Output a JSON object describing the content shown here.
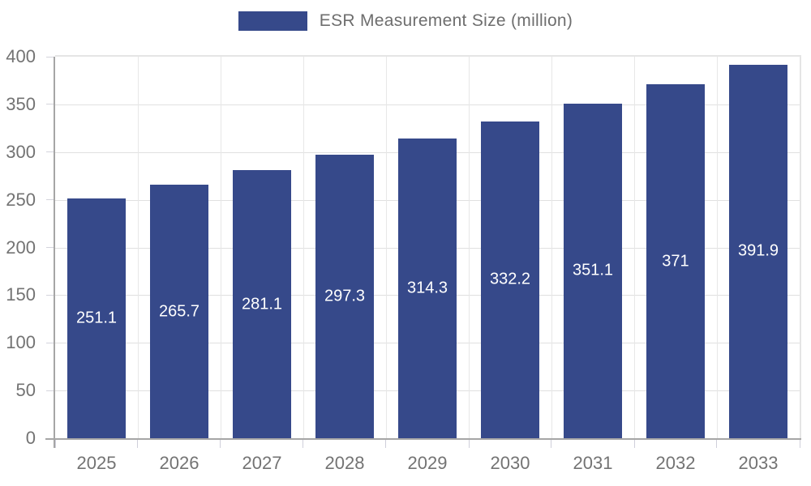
{
  "legend": {
    "label": "ESR Measurement Size (million)",
    "swatch_color": "#36498a"
  },
  "chart_data": {
    "type": "bar",
    "title": "ESR Measurement Size (million)",
    "categories": [
      "2025",
      "2026",
      "2027",
      "2028",
      "2029",
      "2030",
      "2031",
      "2032",
      "2033"
    ],
    "values": [
      251.1,
      265.7,
      281.1,
      297.3,
      314.3,
      332.2,
      351.1,
      371,
      391.9
    ],
    "value_labels": [
      "251.1",
      "265.7",
      "281.1",
      "297.3",
      "314.3",
      "332.2",
      "351.1",
      "371",
      "391.9"
    ],
    "xlabel": "",
    "ylabel": "",
    "ylim": [
      0,
      400
    ],
    "yticks": [
      0,
      50,
      100,
      150,
      200,
      250,
      300,
      350,
      400
    ],
    "grid": true,
    "legend_position": "top-center",
    "bar_color": "#36498a",
    "value_label_color": "#ffffff",
    "axis_label_color": "#737373"
  }
}
